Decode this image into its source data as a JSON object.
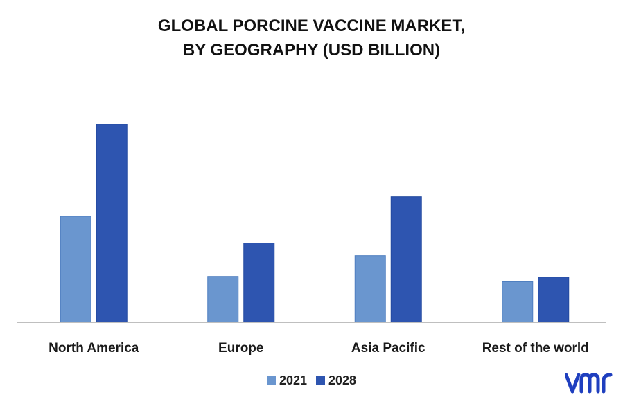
{
  "chart_data": {
    "type": "bar",
    "title_line1": "GLOBAL PORCINE VACCINE MARKET,",
    "title_line2": "BY GEOGRAPHY (USD BILLION)",
    "categories": [
      "North America",
      "Europe",
      "Asia Pacific",
      "Rest of the world"
    ],
    "series": [
      {
        "name": "2021",
        "values": [
          2.7,
          1.17,
          1.7,
          1.05
        ],
        "color": "#6a96cf"
      },
      {
        "name": "2028",
        "values": [
          5.05,
          2.02,
          3.2,
          1.15
        ],
        "color": "#2e55b0"
      }
    ],
    "ylim": [
      0,
      6
    ],
    "grid": false,
    "legend_position": "bottom"
  },
  "logo": {
    "text": "vmr",
    "color": "#1f3fbf"
  }
}
